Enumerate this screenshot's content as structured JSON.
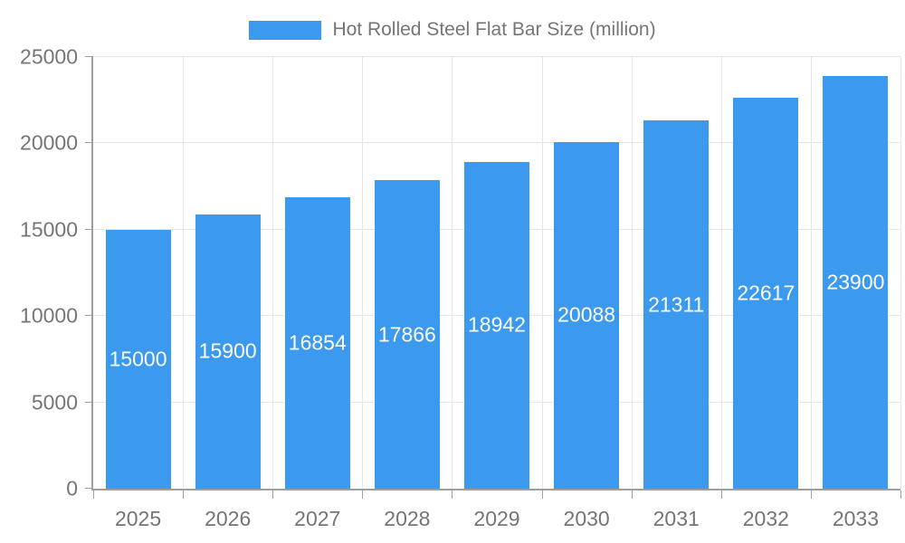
{
  "legend": {
    "label": "Hot Rolled Steel Flat Bar Size (million)"
  },
  "chart_data": {
    "type": "bar",
    "title": "Hot Rolled Steel Flat Bar Size (million)",
    "categories": [
      "2025",
      "2026",
      "2027",
      "2028",
      "2029",
      "2030",
      "2031",
      "2032",
      "2033"
    ],
    "values": [
      15000,
      15900,
      16854,
      17866,
      18942,
      20088,
      21311,
      22617,
      23900
    ],
    "xlabel": "",
    "ylabel": "",
    "ylim": [
      0,
      25000
    ],
    "yticks": [
      0,
      5000,
      10000,
      15000,
      20000,
      25000
    ],
    "grid": "horizontal-and-vertical",
    "legend_position": "top-center",
    "value_labels": "inside-center-white",
    "colors": {
      "bar": "#3B99EE",
      "value_label": "#FFFFFF",
      "text": "#757575",
      "axis": "#9E9E9E",
      "grid": "#E6E6E6",
      "background": "#FFFFFF"
    }
  }
}
